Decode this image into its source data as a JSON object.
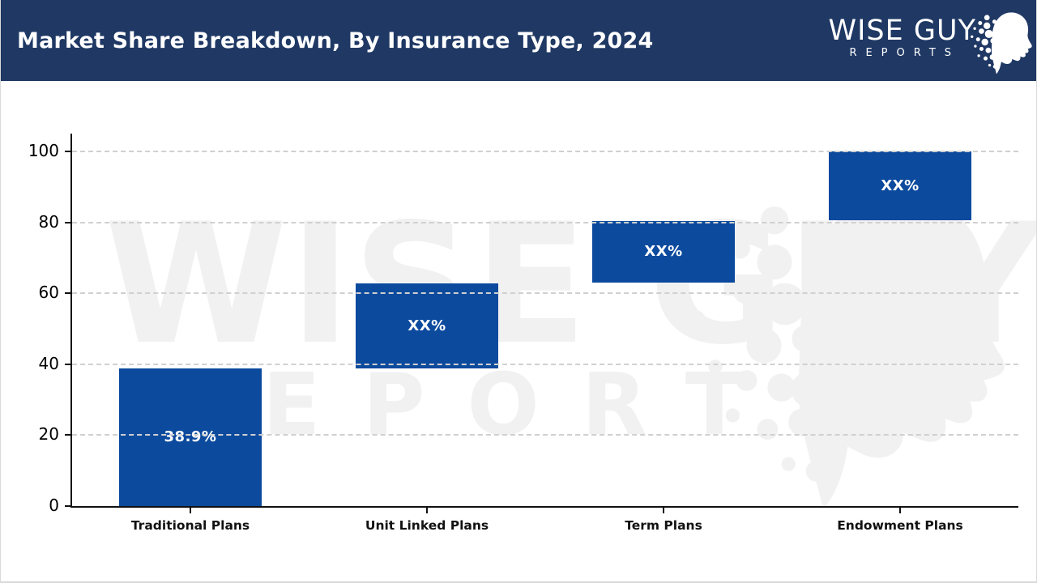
{
  "header": {
    "title": "Market Share Breakdown, By Insurance Type, 2024",
    "logo": {
      "name": "Wise Guy Reports",
      "line1": "WISE GUY",
      "line2": "REPORTS"
    }
  },
  "watermark": {
    "line1": "WISE GUY",
    "line2": "REPORTS"
  },
  "colors": {
    "header_bg": "#1f3864",
    "bar": "#0c4a9e",
    "grid": "#d0d0d0",
    "watermark": "#f1f1f1",
    "axis": "#111111",
    "title_text": "#ffffff",
    "bar_label_text": "#ffffff"
  },
  "chart_data": {
    "type": "bar",
    "subtype": "floating-waterfall",
    "title": "Market Share Breakdown, By Insurance Type, 2024",
    "categories": [
      "Traditional Plans",
      "Unit Linked Plans",
      "Term Plans",
      "Endowment Plans"
    ],
    "bars": [
      {
        "category": "Traditional Plans",
        "base": 0,
        "top": 38.9,
        "label": "38.9%"
      },
      {
        "category": "Unit Linked Plans",
        "base": 38.9,
        "top": 62.8,
        "label": "XX%"
      },
      {
        "category": "Term Plans",
        "base": 63.0,
        "top": 80.4,
        "label": "XX%"
      },
      {
        "category": "Endowment Plans",
        "base": 80.5,
        "top": 100,
        "label": "XX%"
      }
    ],
    "ylim": [
      0,
      100
    ],
    "yticks": [
      0,
      20,
      40,
      60,
      80,
      100
    ],
    "grid": true,
    "grid_style": "dashed",
    "legend": false,
    "bar_color": "#0c4a9e",
    "bar_label_color": "#ffffff"
  }
}
